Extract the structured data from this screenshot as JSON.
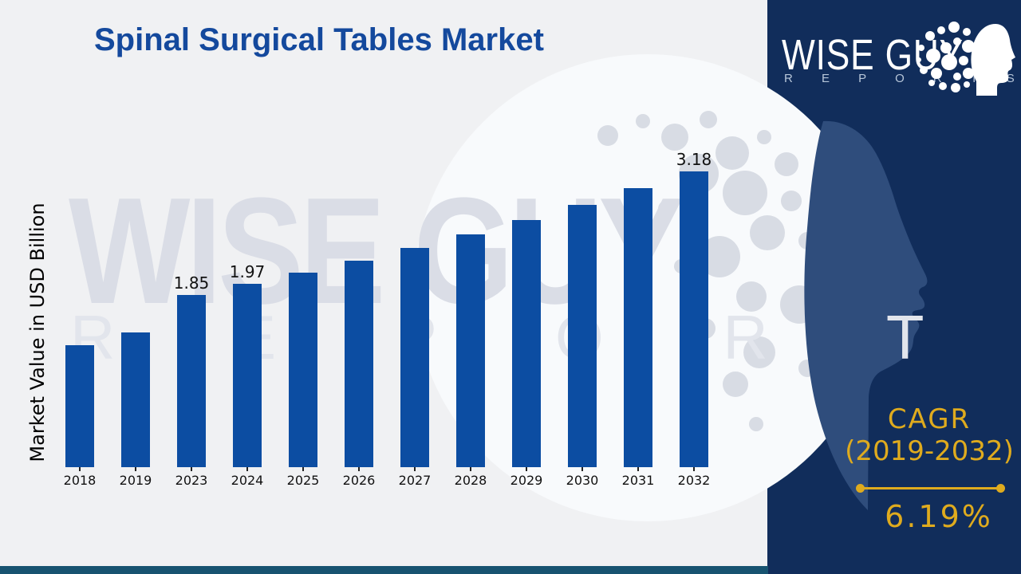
{
  "title": "Spinal Surgical Tables Market",
  "brand": {
    "line1": "WISE GUY",
    "line2": "R E P O R T S"
  },
  "watermark": {
    "line1": "WISE GUY",
    "line2": "R E P O R T S"
  },
  "cagr": {
    "heading": "CAGR",
    "range": "(2019-2032)",
    "value": "6.19%"
  },
  "chart_data": {
    "type": "bar",
    "title": "Spinal Surgical Tables Market",
    "ylabel": "Market Value in USD Billion",
    "categories": [
      "2018",
      "2019",
      "2023",
      "2024",
      "2025",
      "2026",
      "2027",
      "2028",
      "2029",
      "2030",
      "2031",
      "2032"
    ],
    "values": [
      1.31,
      1.45,
      1.85,
      1.97,
      2.09,
      2.22,
      2.36,
      2.5,
      2.66,
      2.82,
      3.0,
      3.18
    ],
    "data_labels": [
      "",
      "",
      "1.85",
      "1.97",
      "",
      "",
      "",
      "",
      "",
      "",
      "",
      "3.18"
    ],
    "bar_color": "#0c4da2",
    "ylim": [
      0,
      3.4
    ],
    "grid": false,
    "legend": false
  },
  "colors": {
    "bar": "#0c4da2",
    "title": "#14499d",
    "panel": "#112d5b",
    "accent_gold": "#dfab1e",
    "teal_strip": "#175370",
    "watermark": "#dadde6",
    "face_silhouette": "#2f4d7c"
  }
}
